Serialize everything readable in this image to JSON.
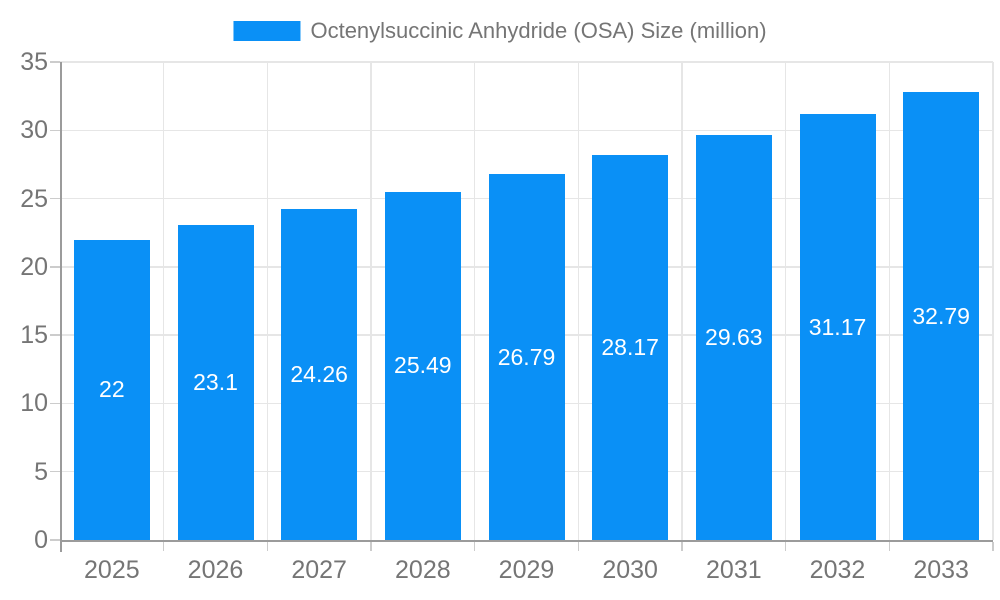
{
  "chart_data": {
    "type": "bar",
    "title": "Octenylsuccinic Anhydride (OSA) Size (million)",
    "legend_label": "Octenylsuccinic Anhydride (OSA) Size (million)",
    "legend_position": "top",
    "categories": [
      "2025",
      "2026",
      "2027",
      "2028",
      "2029",
      "2030",
      "2031",
      "2032",
      "2033"
    ],
    "values": [
      22,
      23.1,
      24.26,
      25.49,
      26.79,
      28.17,
      29.63,
      31.17,
      32.79
    ],
    "value_labels": [
      "22",
      "23.1",
      "24.26",
      "25.49",
      "26.79",
      "28.17",
      "29.63",
      "31.17",
      "32.79"
    ],
    "xlabel": "",
    "ylabel": "",
    "ylim": [
      0,
      35
    ],
    "ytick_step": 5,
    "ytick_labels": [
      "0",
      "5",
      "10",
      "15",
      "20",
      "25",
      "30",
      "35"
    ],
    "grid": true
  },
  "colors": {
    "bar": "#0a90f6",
    "axis_text": "#757575",
    "grid_line": "#e6e6e6",
    "axis_line": "#9b9b9b",
    "tick": "#cccccc",
    "value_label": "#ffffff",
    "background": "#ffffff"
  }
}
